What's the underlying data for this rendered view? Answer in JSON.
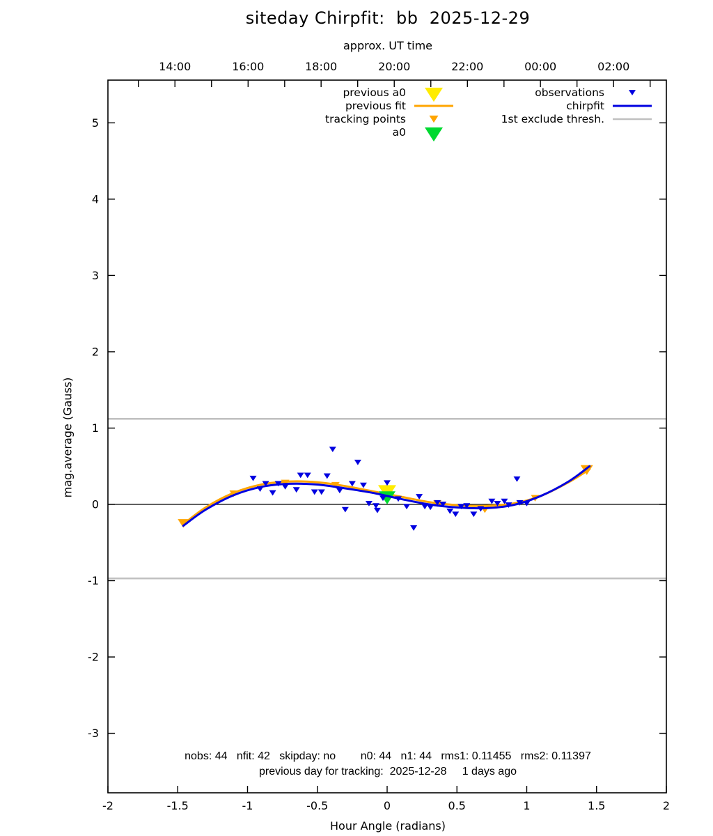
{
  "title": "siteday Chirpfit:  bb  2025-12-29",
  "top_axis": {
    "label": "approx. UT time"
  },
  "y_axis": {
    "label": "mag.average (Gauss)"
  },
  "x_axis": {
    "label": "Hour Angle (radians)"
  },
  "stats": {
    "line1": "nobs: 44   nfit: 42   skipday: no        n0: 44   n1: 44   rms1: 0.11455   rms2: 0.11397",
    "line2": "previous day for tracking:  2025-12-28     1 days ago"
  },
  "legend": {
    "left": [
      {
        "label": "previous a0",
        "marker": "triangle",
        "color": "#ffec00",
        "size": 26
      },
      {
        "label": "previous fit",
        "marker": "line",
        "color": "#ffa500"
      },
      {
        "label": "tracking points",
        "marker": "triangle",
        "color": "#ffa500",
        "size": 13
      },
      {
        "label": "a0",
        "marker": "triangle",
        "color": "#00d930",
        "size": 26
      }
    ],
    "right": [
      {
        "label": "observations",
        "marker": "triangle",
        "color": "#0000e0",
        "size": 10
      },
      {
        "label": "chirpfit",
        "marker": "line",
        "color": "#0000e0"
      },
      {
        "label": "1st exclude thresh.",
        "marker": "line",
        "color": "#c0c0c0"
      }
    ]
  },
  "chart_data": {
    "type": "scatter",
    "title": "siteday Chirpfit:  bb  2025-12-29",
    "xlabel": "Hour Angle (radians)",
    "ylabel": "mag.average (Gauss)",
    "x2label": "approx. UT time",
    "xlim": [
      -2,
      2
    ],
    "ylim": [
      -3.78,
      5.56
    ],
    "grid": false,
    "x_ticks": [
      -2,
      -1.5,
      -1,
      -0.5,
      0,
      0.5,
      1,
      1.5,
      2
    ],
    "x_tick_labels": [
      "-2",
      "-1.5",
      "-1",
      "-0.5",
      "0",
      "0.5",
      "1",
      "1.5",
      "2"
    ],
    "y_ticks": [
      -3,
      -2,
      -1,
      0,
      1,
      2,
      3,
      4,
      5
    ],
    "y_tick_labels": [
      "-3",
      "-2",
      "-1",
      "0",
      "1",
      "2",
      "3",
      "4",
      "5"
    ],
    "ut_hour_ticks": [
      {
        "ha": -1.782,
        "label": ""
      },
      {
        "ha": -1.52,
        "label": "14:00"
      },
      {
        "ha": -1.258,
        "label": ""
      },
      {
        "ha": -0.996,
        "label": "16:00"
      },
      {
        "ha": -0.734,
        "label": ""
      },
      {
        "ha": -0.473,
        "label": "18:00"
      },
      {
        "ha": -0.211,
        "label": ""
      },
      {
        "ha": 0.051,
        "label": "20:00"
      },
      {
        "ha": 0.313,
        "label": ""
      },
      {
        "ha": 0.575,
        "label": "22:00"
      },
      {
        "ha": 0.837,
        "label": ""
      },
      {
        "ha": 1.098,
        "label": "00:00"
      },
      {
        "ha": 1.36,
        "label": ""
      },
      {
        "ha": 1.622,
        "label": "02:00"
      },
      {
        "ha": 1.884,
        "label": ""
      }
    ],
    "exclude_thresholds": [
      1.12,
      -0.97
    ],
    "zero_line": 0,
    "colors": {
      "observations": "#0000e0",
      "chirpfit": "#0000e0",
      "previous_fit": "#ffa500",
      "tracking_points": "#ffa500",
      "previous_a0": "#ffec00",
      "a0": "#00d930",
      "threshold": "#c0c0c0",
      "axis": "#000000"
    },
    "series": [
      {
        "name": "observations",
        "type": "scatter",
        "marker": "triangle-down",
        "color": "#0000e0",
        "points": [
          [
            -0.96,
            0.34
          ],
          [
            -0.91,
            0.2
          ],
          [
            -0.87,
            0.27
          ],
          [
            -0.82,
            0.15
          ],
          [
            -0.78,
            0.27
          ],
          [
            -0.73,
            0.23
          ],
          [
            -0.65,
            0.19
          ],
          [
            -0.62,
            0.38
          ],
          [
            -0.57,
            0.38
          ],
          [
            -0.52,
            0.16
          ],
          [
            -0.47,
            0.16
          ],
          [
            -0.43,
            0.37
          ],
          [
            -0.39,
            0.72
          ],
          [
            -0.34,
            0.18
          ],
          [
            -0.3,
            -0.07
          ],
          [
            -0.25,
            0.27
          ],
          [
            -0.21,
            0.55
          ],
          [
            -0.17,
            0.25
          ],
          [
            -0.13,
            0.01
          ],
          [
            -0.08,
            -0.02
          ],
          [
            -0.07,
            -0.08
          ],
          [
            -0.03,
            0.08
          ],
          [
            0.0,
            0.28
          ],
          [
            0.08,
            0.07
          ],
          [
            0.14,
            -0.03
          ],
          [
            0.19,
            -0.31
          ],
          [
            0.23,
            0.1
          ],
          [
            0.27,
            -0.03
          ],
          [
            0.31,
            -0.04
          ],
          [
            0.36,
            0.02
          ],
          [
            0.4,
            0.0
          ],
          [
            0.45,
            -0.09
          ],
          [
            0.49,
            -0.13
          ],
          [
            0.53,
            -0.03
          ],
          [
            0.57,
            -0.02
          ],
          [
            0.62,
            -0.13
          ],
          [
            0.67,
            -0.06
          ],
          [
            0.75,
            0.04
          ],
          [
            0.79,
            0.01
          ],
          [
            0.84,
            0.04
          ],
          [
            0.87,
            -0.01
          ],
          [
            0.93,
            0.33
          ],
          [
            0.95,
            0.02
          ],
          [
            1.0,
            0.01
          ]
        ]
      },
      {
        "name": "tracking points",
        "type": "scatter",
        "marker": "triangle-down",
        "color": "#ffa500",
        "points": [
          [
            -1.46,
            -0.25
          ],
          [
            -1.1,
            0.14
          ],
          [
            -0.73,
            0.28
          ],
          [
            -0.37,
            0.25
          ],
          [
            0.36,
            0.01
          ],
          [
            0.7,
            -0.07
          ],
          [
            1.06,
            0.08
          ],
          [
            1.43,
            0.45
          ]
        ],
        "sizes": [
          16,
          12,
          12,
          12,
          12,
          12,
          12,
          18
        ]
      },
      {
        "name": "previous a0",
        "type": "scatter",
        "marker": "triangle-down",
        "color": "#ffec00",
        "points": [
          [
            0.0,
            0.16
          ]
        ],
        "sizes": [
          26
        ]
      },
      {
        "name": "a0",
        "type": "scatter",
        "marker": "triangle-down",
        "color": "#00d930",
        "points": [
          [
            0.0,
            0.085
          ]
        ],
        "sizes": [
          24
        ]
      },
      {
        "name": "previous fit",
        "type": "line",
        "color": "#ffa500",
        "x": [
          -1.46,
          -1.3,
          -1.1,
          -0.9,
          -0.7,
          -0.5,
          -0.3,
          -0.1,
          0.1,
          0.3,
          0.5,
          0.7,
          0.9,
          1.1,
          1.3,
          1.45
        ],
        "y": [
          -0.26,
          -0.04,
          0.15,
          0.26,
          0.3,
          0.29,
          0.24,
          0.17,
          0.1,
          0.03,
          -0.01,
          -0.02,
          0.01,
          0.11,
          0.29,
          0.46
        ]
      },
      {
        "name": "chirpfit",
        "type": "line",
        "color": "#0000e0",
        "x": [
          -1.46,
          -1.3,
          -1.1,
          -0.9,
          -0.7,
          -0.5,
          -0.3,
          -0.1,
          0.1,
          0.3,
          0.5,
          0.7,
          0.9,
          1.1,
          1.3,
          1.45
        ],
        "y": [
          -0.28,
          -0.07,
          0.12,
          0.23,
          0.27,
          0.26,
          0.21,
          0.15,
          0.07,
          0.0,
          -0.04,
          -0.05,
          -0.01,
          0.11,
          0.3,
          0.5
        ]
      }
    ]
  }
}
